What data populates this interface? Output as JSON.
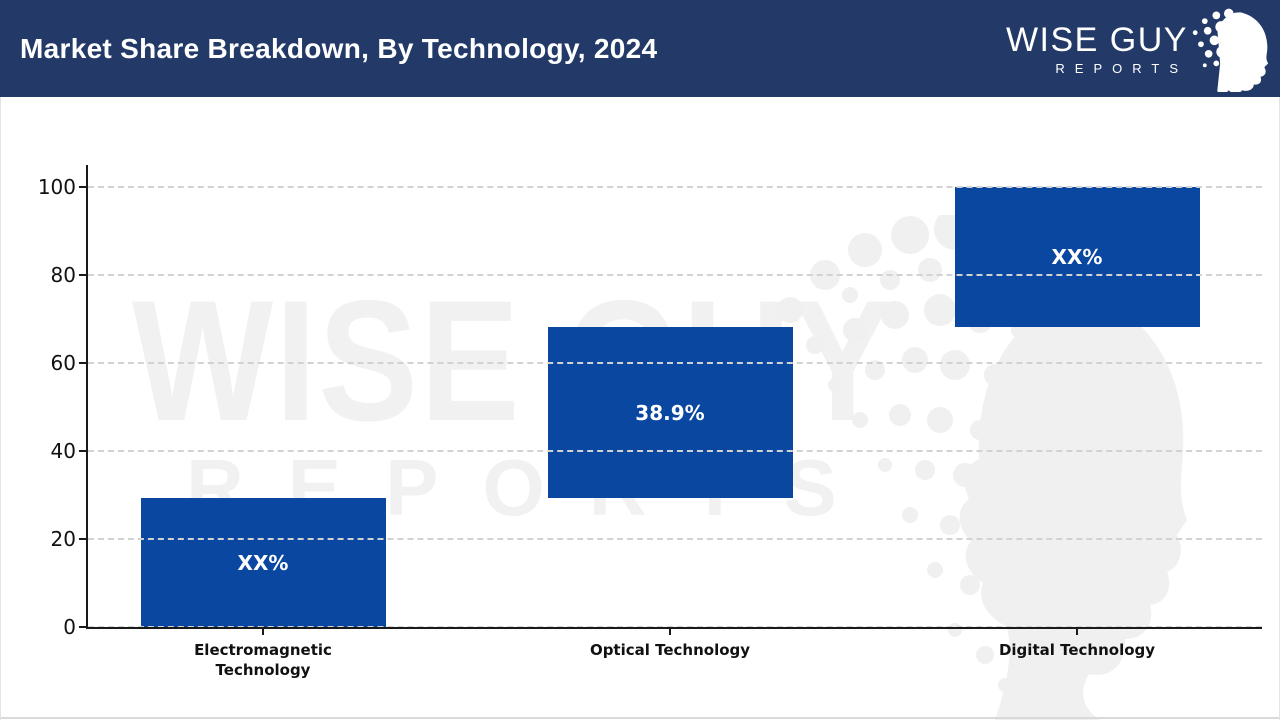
{
  "header": {
    "title": "Market Share Breakdown, By Technology, 2024",
    "logo": {
      "line1": "WISE GUY",
      "line2": "REPORTS"
    }
  },
  "watermark": {
    "line1": "WISE GUY",
    "line2": "REPORTS"
  },
  "chart_data": {
    "type": "bar",
    "subtype": "floating-segment-breakdown",
    "title": "Market Share Breakdown, By Technology, 2024",
    "categories": [
      "Electromagnetic Technology",
      "Optical Technology",
      "Digital Technology"
    ],
    "segments": [
      {
        "category": "Electromagnetic Technology",
        "start": 0,
        "end": 29.3,
        "label": "XX%"
      },
      {
        "category": "Optical Technology",
        "start": 29.3,
        "end": 68.2,
        "label": "38.9%",
        "value": 38.9
      },
      {
        "category": "Digital Technology",
        "start": 68.2,
        "end": 100,
        "label": "XX%"
      }
    ],
    "yticks": [
      0,
      20,
      40,
      60,
      80,
      100
    ],
    "ylim": [
      0,
      105
    ],
    "xlabel": "",
    "ylabel": "",
    "grid": "horizontal-dashed",
    "legend": "none",
    "colors": {
      "bar": "#0A47A0",
      "header_background": "#233A69",
      "grid_line": "#d2d2d2",
      "axis_line": "#1a1a1a",
      "bar_label_text": "#ffffff",
      "watermark": "#f1f1f1"
    }
  }
}
